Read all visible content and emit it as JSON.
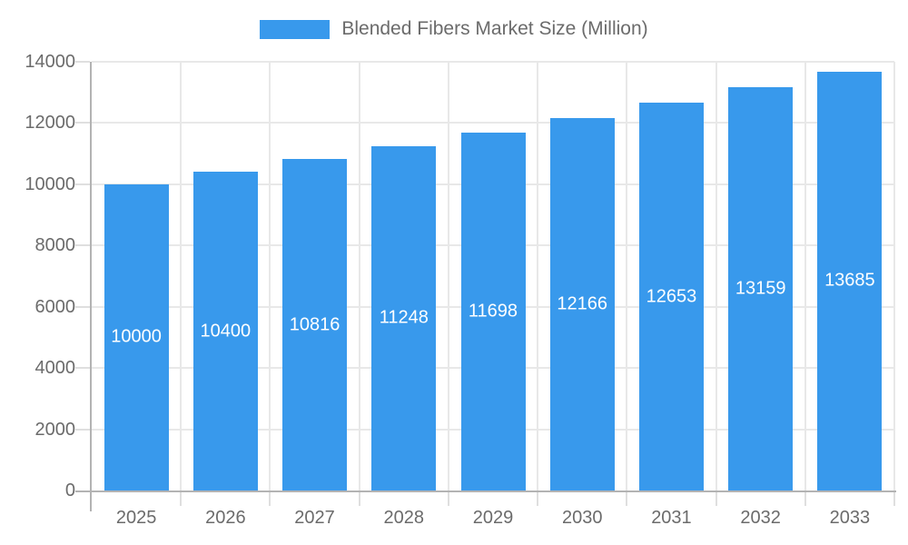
{
  "legend": {
    "label": "Blended Fibers Market Size (Million)"
  },
  "chart_data": {
    "type": "bar",
    "title": "",
    "categories": [
      "2025",
      "2026",
      "2027",
      "2028",
      "2029",
      "2030",
      "2031",
      "2032",
      "2033"
    ],
    "series": [
      {
        "name": "Blended Fibers Market Size (Million)",
        "values": [
          10000,
          10400,
          10816,
          11248,
          11698,
          12166,
          12653,
          13159,
          13685
        ]
      }
    ],
    "data_labels_shown": true,
    "xlabel": "",
    "ylabel": "",
    "ylim": [
      0,
      14000
    ],
    "y_ticks": [
      0,
      2000,
      4000,
      6000,
      8000,
      10000,
      12000,
      14000
    ],
    "grid": true,
    "legend_position": "top-center",
    "colors": {
      "bar": "#3899EC",
      "bar_value_label": "#FFFFFF",
      "axis_text": "#6B6B6B",
      "legend_text": "#6B6B6B",
      "gridline": "#E8E8E8",
      "tick": "#DFDFDF",
      "axis_line": "#B3B3B3",
      "background": "#FFFFFF"
    }
  }
}
